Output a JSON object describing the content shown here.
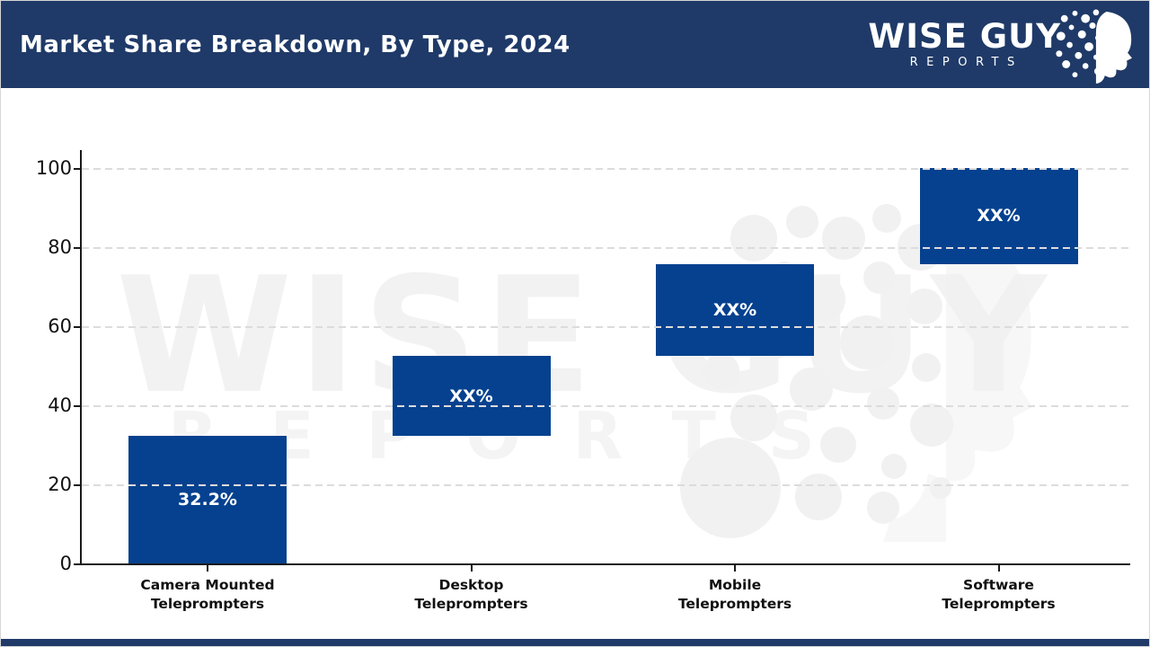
{
  "header": {
    "title": "Market Share Breakdown, By Type, 2024",
    "bg_color": "#1f3a68",
    "logo": {
      "line1": "WISE GUY",
      "line2": "REPORTS",
      "icon": "wiseguy-head-icon"
    }
  },
  "watermark": {
    "line1": "WISE GUY",
    "line2": "REPORTS",
    "icon": "wiseguy-head-watermark-icon"
  },
  "chart_data": {
    "type": "bar",
    "subtype": "waterfall",
    "title": "Market Share Breakdown, By Type, 2024",
    "categories": [
      [
        "Camera Mounted",
        "Teleprompters"
      ],
      [
        "Desktop",
        "Teleprompters"
      ],
      [
        "Mobile",
        "Teleprompters"
      ],
      [
        "Software",
        "Teleprompters"
      ]
    ],
    "segments": [
      {
        "start": 0,
        "end": 32.2,
        "label": "32.2%"
      },
      {
        "start": 32.2,
        "end": 52.5,
        "label": "XX%"
      },
      {
        "start": 52.5,
        "end": 75.7,
        "label": "XX%"
      },
      {
        "start": 75.7,
        "end": 100,
        "label": "XX%"
      }
    ],
    "ylim": [
      0,
      100
    ],
    "yticks": [
      0,
      20,
      40,
      60,
      80,
      100
    ],
    "grid": "dashed horizontal",
    "legend": "none",
    "xlabel": "",
    "ylabel": "",
    "bar_color": "#05418f",
    "bar_label_color": "#ffffff"
  }
}
